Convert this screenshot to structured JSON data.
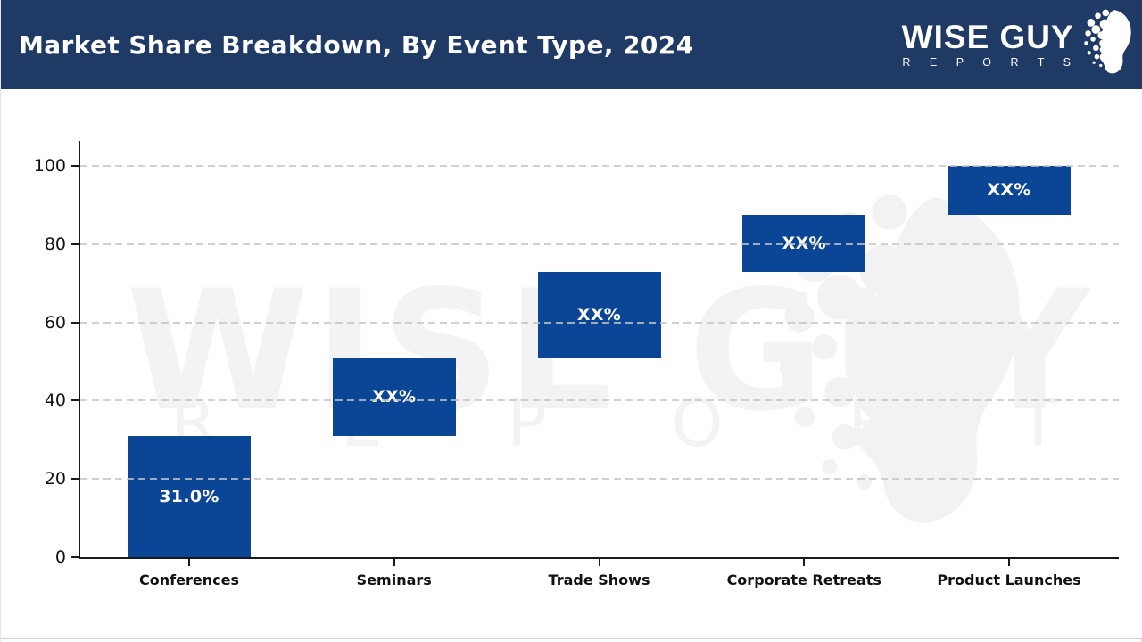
{
  "header": {
    "title": "Market Share Breakdown, By Event Type, 2024",
    "bg_color": "#203a66",
    "logo": {
      "line1": "WISE GUY",
      "line2": "R E P O R T S"
    }
  },
  "watermark": {
    "line1": "WISE GUY",
    "line2": "R E P O R T S"
  },
  "chart_data": {
    "type": "bar",
    "subtype": "waterfall",
    "title": "Market Share Breakdown, By Event Type, 2024",
    "categories": [
      "Conferences",
      "Seminars",
      "Trade Shows",
      "Corporate Retreats",
      "Product Launches"
    ],
    "segments": [
      {
        "category": "Conferences",
        "start": 0,
        "end": 31,
        "value": 31.0,
        "label": "31.0%"
      },
      {
        "category": "Seminars",
        "start": 31,
        "end": 51,
        "value": 20.0,
        "label": "XX%"
      },
      {
        "category": "Trade Shows",
        "start": 51,
        "end": 73,
        "value": 22.0,
        "label": "XX%"
      },
      {
        "category": "Corporate Retreats",
        "start": 73,
        "end": 87.5,
        "value": 14.5,
        "label": "XX%"
      },
      {
        "category": "Product Launches",
        "start": 87.5,
        "end": 100,
        "value": 12.5,
        "label": "XX%"
      }
    ],
    "y_ticks": [
      0,
      20,
      40,
      60,
      80,
      100
    ],
    "ylim": [
      0,
      106
    ],
    "xlabel": "",
    "ylabel": "",
    "grid": "horizontal-dashed",
    "legend": "none",
    "bar_color": "#0b4596",
    "bar_label_color": "#ffffff",
    "axis_color": "#1a1a1a"
  }
}
